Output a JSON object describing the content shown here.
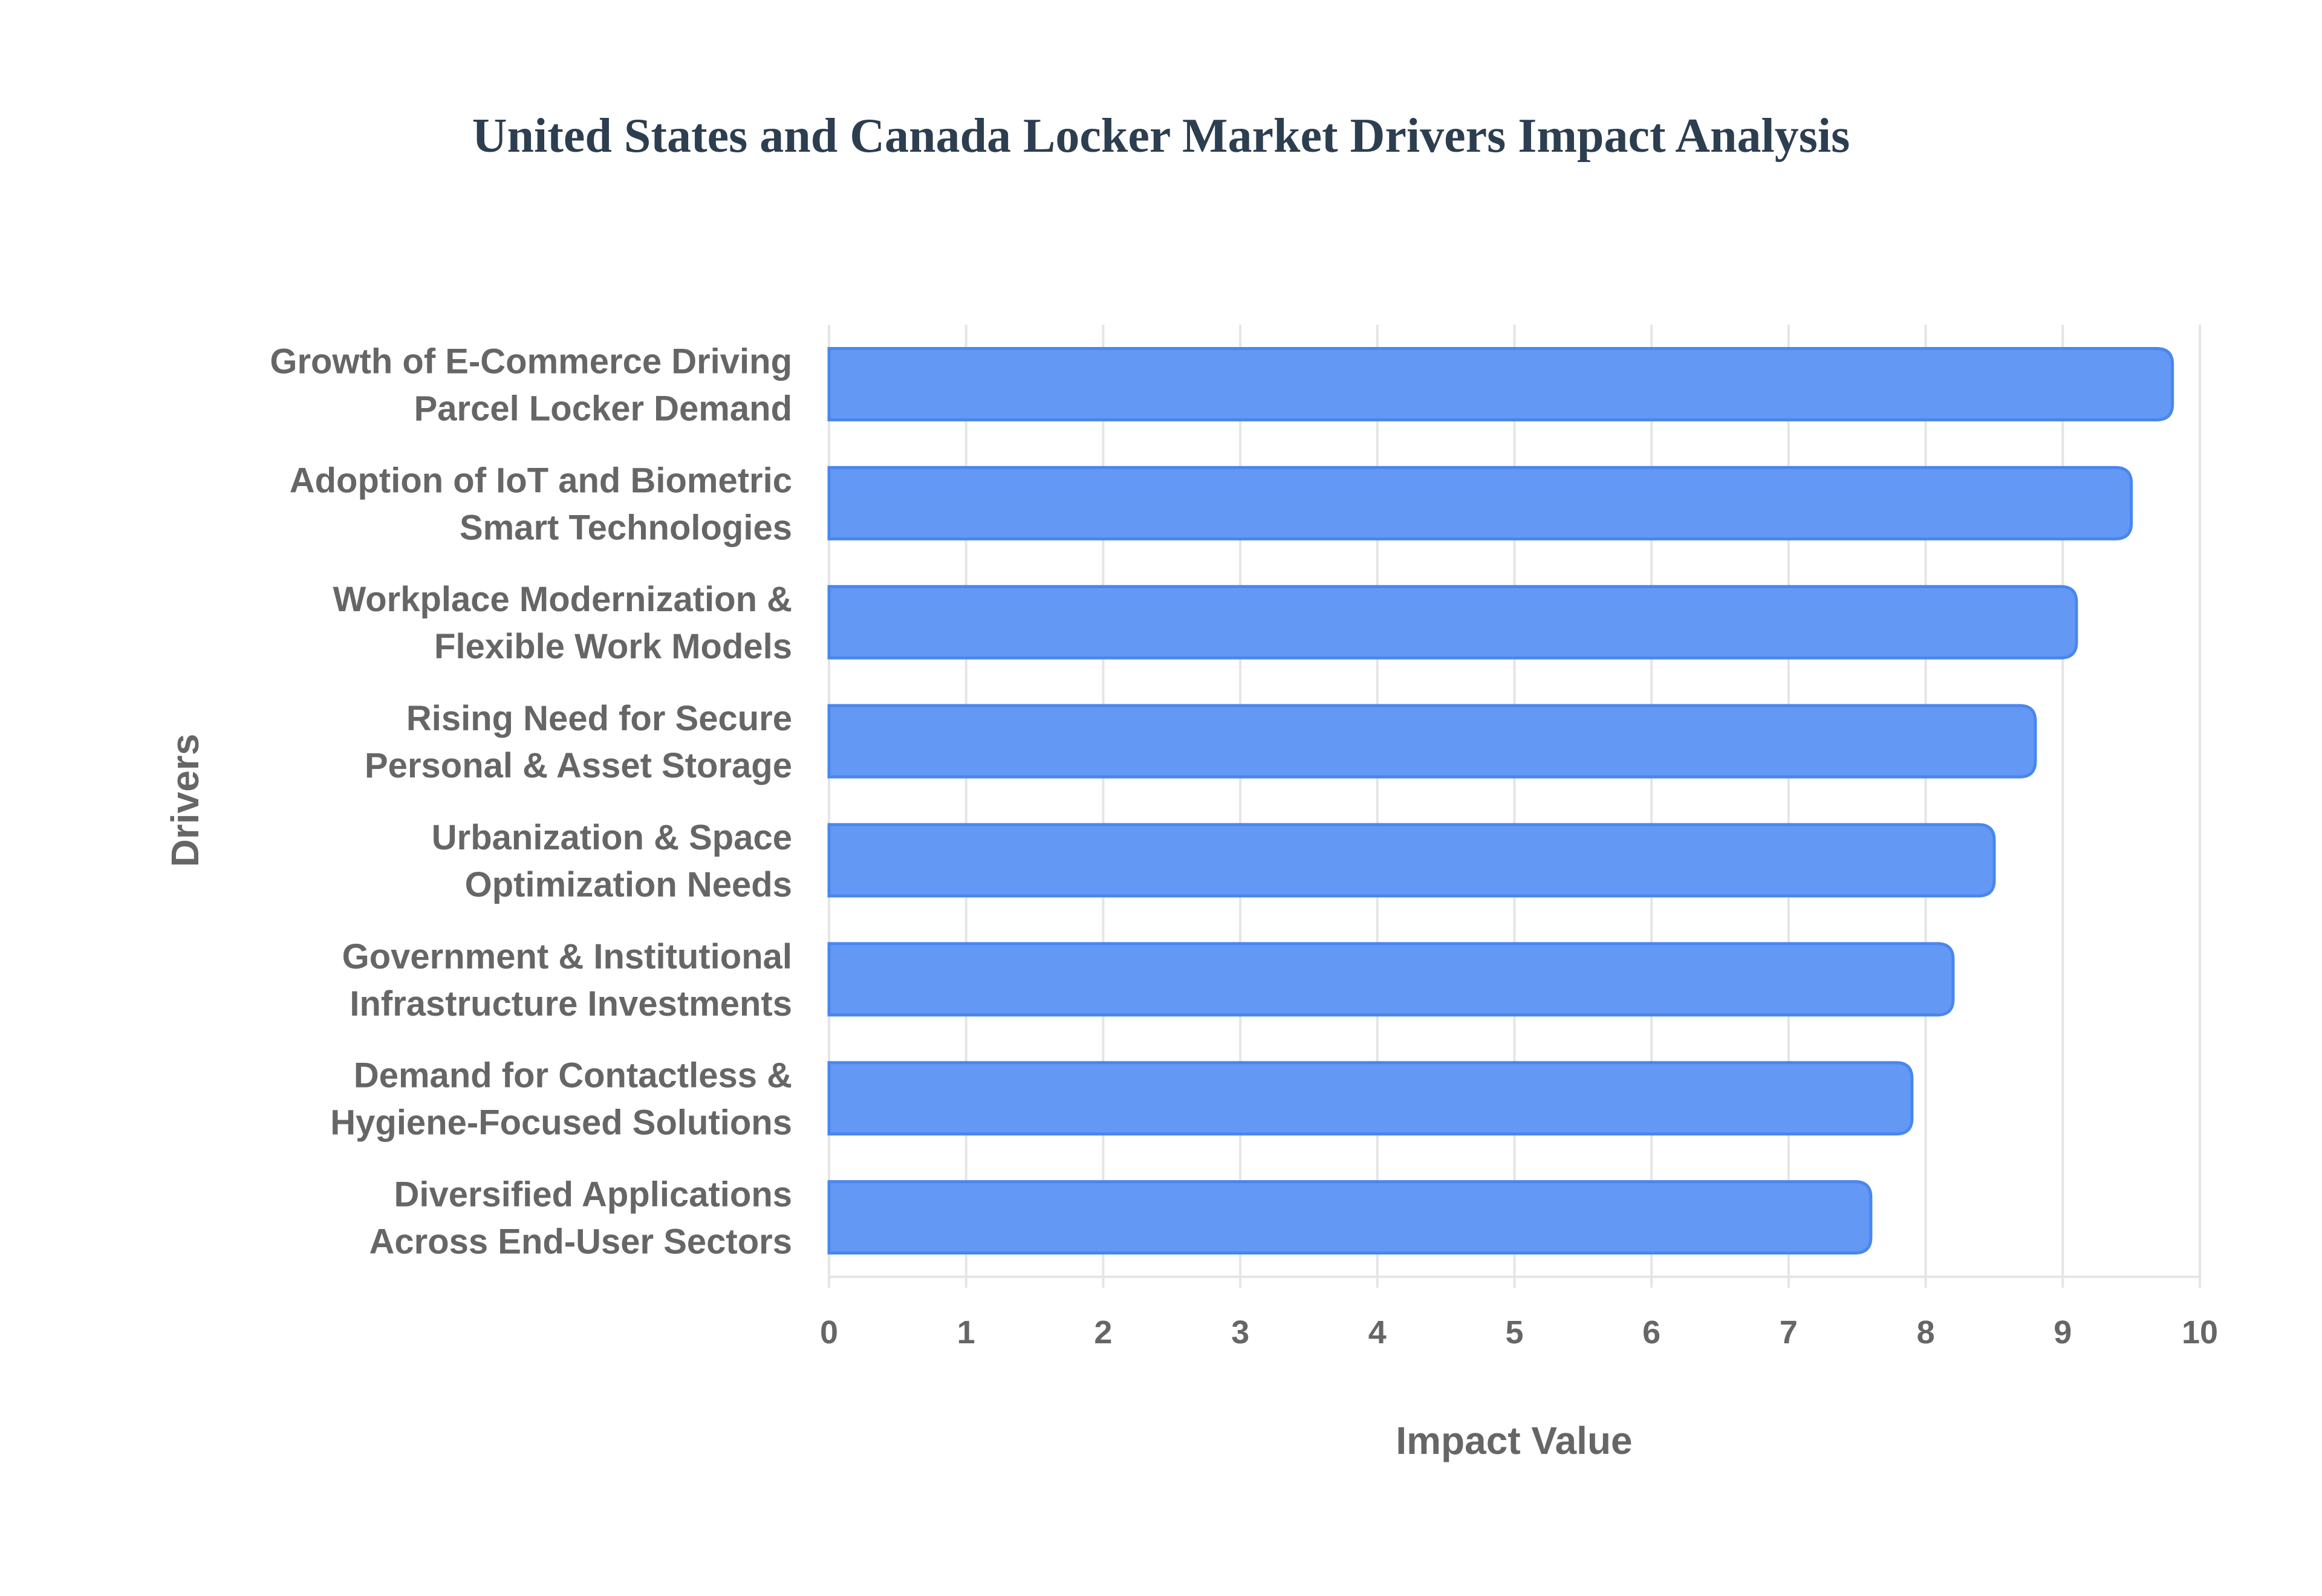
{
  "chart_data": {
    "type": "bar",
    "orientation": "horizontal",
    "title": "United States and Canada Locker Market Drivers Impact Analysis",
    "xlabel": "Impact Value",
    "ylabel": "Drivers",
    "xlim": [
      0,
      10
    ],
    "xticks": [
      "0",
      "1",
      "2",
      "3",
      "4",
      "5",
      "6",
      "7",
      "8",
      "9",
      "10"
    ],
    "grid": true,
    "categories": [
      [
        "Growth of E-Commerce Driving",
        "Parcel Locker Demand"
      ],
      [
        "Adoption of IoT and Biometric",
        "Smart Technologies"
      ],
      [
        "Workplace Modernization &",
        "Flexible Work Models"
      ],
      [
        "Rising Need for Secure",
        "Personal & Asset Storage"
      ],
      [
        "Urbanization & Space",
        "Optimization Needs"
      ],
      [
        "Government & Institutional",
        "Infrastructure Investments"
      ],
      [
        "Demand for Contactless &",
        "Hygiene-Focused Solutions"
      ],
      [
        "Diversified Applications",
        "Across End-User Sectors"
      ]
    ],
    "values": [
      9.8,
      9.5,
      9.1,
      8.8,
      8.5,
      8.2,
      7.9,
      7.6
    ],
    "colors": {
      "bar_fill": "#6399f5",
      "bar_border": "#4a86ee",
      "grid": "#e5e5e5",
      "title": "#2c3e50",
      "text": "#666666"
    }
  }
}
